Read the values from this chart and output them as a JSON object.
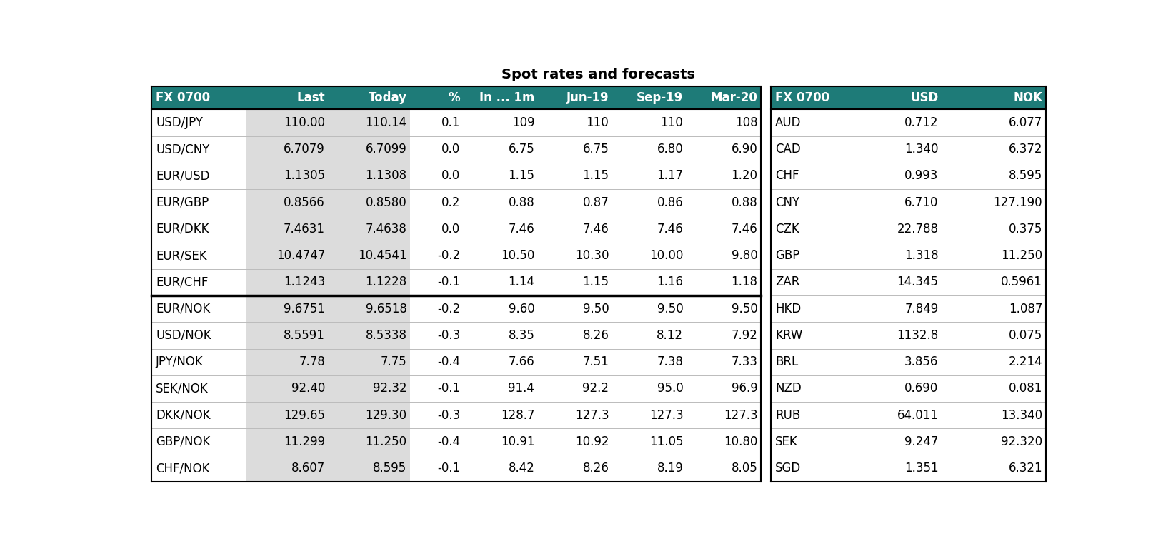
{
  "title": "Spot rates and forecasts",
  "header_bg": "#1e7b78",
  "header_text_color": "#ffffff",
  "body_bg": "#ffffff",
  "gray_col_bg": "#dcdcdc",
  "border_color": "#000000",
  "left_headers": [
    "FX 0700",
    "Last",
    "Today",
    "%",
    "In ... 1m",
    "Jun-19",
    "Sep-19",
    "Mar-20"
  ],
  "right_headers": [
    "FX 0700",
    "USD",
    "NOK"
  ],
  "left_data": [
    [
      "USD/JPY",
      "110.00",
      "110.14",
      "0.1",
      "109",
      "110",
      "110",
      "108"
    ],
    [
      "USD/CNY",
      "6.7079",
      "6.7099",
      "0.0",
      "6.75",
      "6.75",
      "6.80",
      "6.90"
    ],
    [
      "EUR/USD",
      "1.1305",
      "1.1308",
      "0.0",
      "1.15",
      "1.15",
      "1.17",
      "1.20"
    ],
    [
      "EUR/GBP",
      "0.8566",
      "0.8580",
      "0.2",
      "0.88",
      "0.87",
      "0.86",
      "0.88"
    ],
    [
      "EUR/DKK",
      "7.4631",
      "7.4638",
      "0.0",
      "7.46",
      "7.46",
      "7.46",
      "7.46"
    ],
    [
      "EUR/SEK",
      "10.4747",
      "10.4541",
      "-0.2",
      "10.50",
      "10.30",
      "10.00",
      "9.80"
    ],
    [
      "EUR/CHF",
      "1.1243",
      "1.1228",
      "-0.1",
      "1.14",
      "1.15",
      "1.16",
      "1.18"
    ],
    [
      "EUR/NOK",
      "9.6751",
      "9.6518",
      "-0.2",
      "9.60",
      "9.50",
      "9.50",
      "9.50"
    ],
    [
      "USD/NOK",
      "8.5591",
      "8.5338",
      "-0.3",
      "8.35",
      "8.26",
      "8.12",
      "7.92"
    ],
    [
      "JPY/NOK",
      "7.78",
      "7.75",
      "-0.4",
      "7.66",
      "7.51",
      "7.38",
      "7.33"
    ],
    [
      "SEK/NOK",
      "92.40",
      "92.32",
      "-0.1",
      "91.4",
      "92.2",
      "95.0",
      "96.9"
    ],
    [
      "DKK/NOK",
      "129.65",
      "129.30",
      "-0.3",
      "128.7",
      "127.3",
      "127.3",
      "127.3"
    ],
    [
      "GBP/NOK",
      "11.299",
      "11.250",
      "-0.4",
      "10.91",
      "10.92",
      "11.05",
      "10.80"
    ],
    [
      "CHF/NOK",
      "8.607",
      "8.595",
      "-0.1",
      "8.42",
      "8.26",
      "8.19",
      "8.05"
    ]
  ],
  "right_data": [
    [
      "AUD",
      "0.712",
      "6.077"
    ],
    [
      "CAD",
      "1.340",
      "6.372"
    ],
    [
      "CHF",
      "0.993",
      "8.595"
    ],
    [
      "CNY",
      "6.710",
      "127.190"
    ],
    [
      "CZK",
      "22.788",
      "0.375"
    ],
    [
      "GBP",
      "1.318",
      "11.250"
    ],
    [
      "ZAR",
      "14.345",
      "0.5961"
    ],
    [
      "HKD",
      "7.849",
      "1.087"
    ],
    [
      "KRW",
      "1132.8",
      "0.075"
    ],
    [
      "BRL",
      "3.856",
      "2.214"
    ],
    [
      "NZD",
      "0.690",
      "0.081"
    ],
    [
      "RUB",
      "64.011",
      "13.340"
    ],
    [
      "SEK",
      "9.247",
      "92.320"
    ],
    [
      "SGD",
      "1.351",
      "6.321"
    ]
  ],
  "divider_after_row": 7,
  "title_fontsize": 14,
  "header_fontsize": 12,
  "data_fontsize": 12
}
